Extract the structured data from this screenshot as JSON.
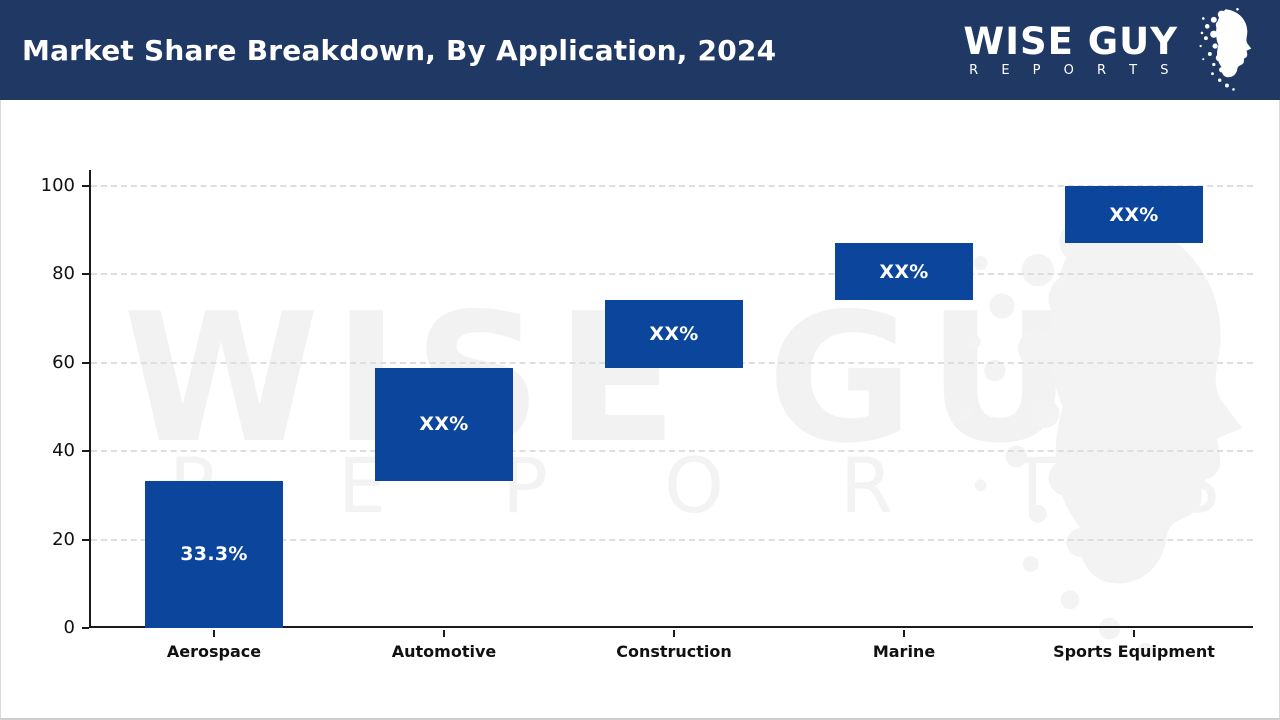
{
  "header": {
    "title": "Market Share Breakdown, By Application, 2024",
    "brand": {
      "line1": "WISE GUY",
      "line2": "R E P O R T S"
    },
    "background_color": "#1f3864"
  },
  "watermark": {
    "line1": "WISE GUY",
    "line2": "R E P O R T S"
  },
  "chart_data": {
    "type": "bar",
    "subtype": "waterfall",
    "title": "Market Share Breakdown, By Application, 2024",
    "categories": [
      "Aerospace",
      "Automotive",
      "Construction",
      "Marine",
      "Sports Equipment"
    ],
    "segments": [
      {
        "category": "Aerospace",
        "start": 0,
        "end": 33.3,
        "label": "33.3%"
      },
      {
        "category": "Automotive",
        "start": 33.3,
        "end": 58.8,
        "label": "XX%"
      },
      {
        "category": "Construction",
        "start": 58.8,
        "end": 74.1,
        "label": "XX%"
      },
      {
        "category": "Marine",
        "start": 74.1,
        "end": 87.0,
        "label": "XX%"
      },
      {
        "category": "Sports Equipment",
        "start": 87.0,
        "end": 100.0,
        "label": "XX%"
      }
    ],
    "y_ticks": [
      0,
      20,
      40,
      60,
      80,
      100
    ],
    "ylim": [
      0,
      103.6
    ],
    "xlabel": "",
    "ylabel": "",
    "legend": "none",
    "grid": "horizontal-dashed",
    "bar_color": "#0b459c",
    "axis_color": "#1a1a1a",
    "gridline_color": "#dedede"
  }
}
